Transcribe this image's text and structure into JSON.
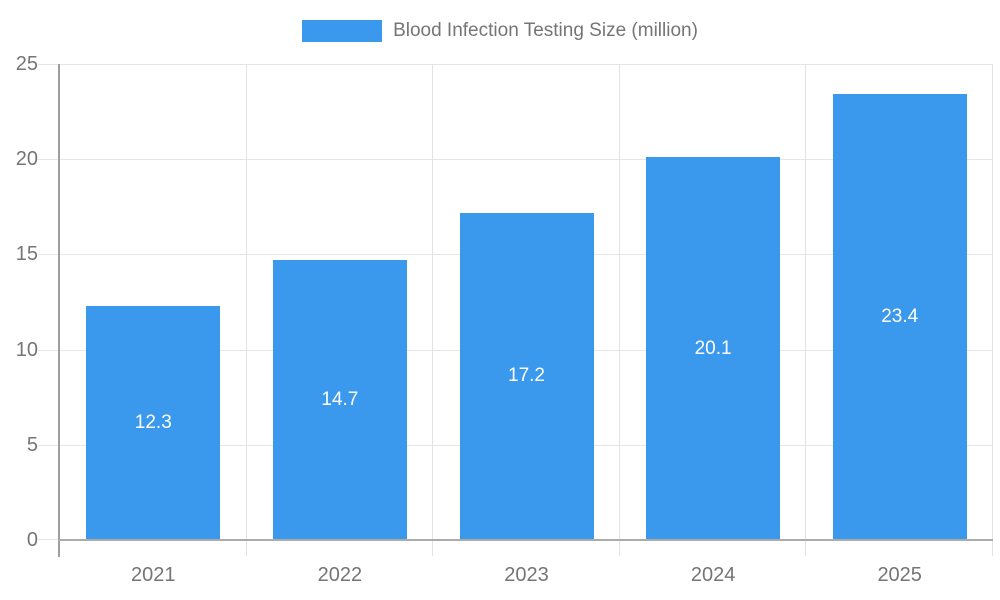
{
  "legend": {
    "label": "Blood Infection Testing Size (million)"
  },
  "chart_data": {
    "type": "bar",
    "title": "",
    "categories": [
      "2021",
      "2022",
      "2023",
      "2024",
      "2025"
    ],
    "values": [
      12.3,
      14.7,
      17.2,
      20.1,
      23.4
    ],
    "value_labels": [
      "12.3",
      "14.7",
      "17.2",
      "20.1",
      "23.4"
    ],
    "series_name": "Blood Infection Testing Size (million)",
    "xlabel": "",
    "ylabel": "",
    "ylim": [
      0,
      25
    ],
    "yticks": [
      0,
      5,
      10,
      15,
      20,
      25
    ],
    "grid": true,
    "legend_position": "top",
    "colors": {
      "bar": "#3b99ed",
      "value_label": "#ffffff",
      "axis_text": "#757575",
      "gridline": "#e6e6e6",
      "axis_line": "#a3a3a3",
      "background": "#ffffff"
    }
  }
}
